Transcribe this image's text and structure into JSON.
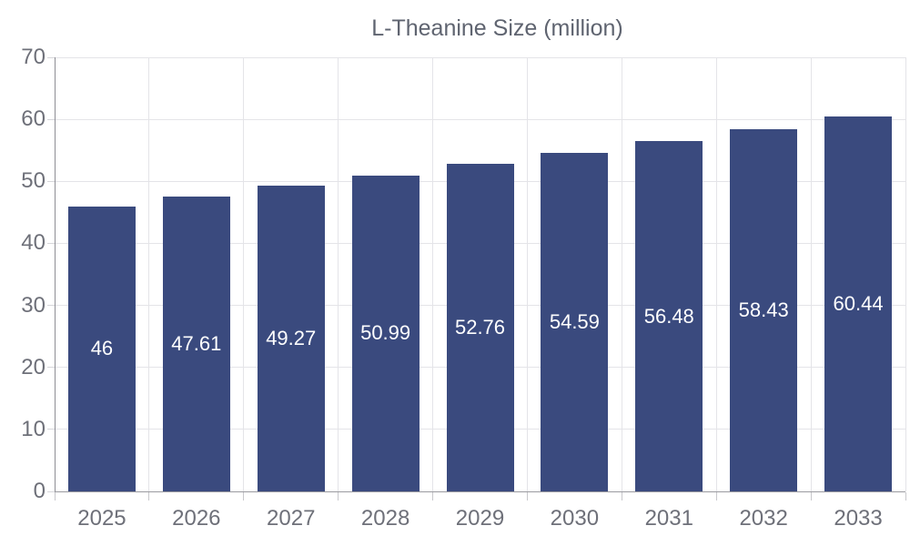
{
  "legend": {
    "label": "L-Theanine Size (million)"
  },
  "colors": {
    "bar": "#3a4a7e",
    "grid": "#e4e4e8",
    "axis": "#9a9aa0",
    "axis_label": "#6e7079",
    "legend_text": "#5f6470",
    "bar_label": "#ffffff",
    "background": "#ffffff"
  },
  "chart_data": {
    "type": "bar",
    "title": "",
    "xlabel": "",
    "ylabel": "",
    "categories": [
      "2025",
      "2026",
      "2027",
      "2028",
      "2029",
      "2030",
      "2031",
      "2032",
      "2033"
    ],
    "series": [
      {
        "name": "L-Theanine Size (million)",
        "values": [
          46,
          47.61,
          49.27,
          50.99,
          52.76,
          54.59,
          56.48,
          58.43,
          60.44
        ]
      }
    ],
    "data_labels": [
      "46",
      "47.61",
      "49.27",
      "50.99",
      "52.76",
      "54.59",
      "56.48",
      "58.43",
      "60.44"
    ],
    "ylim": [
      0,
      70
    ],
    "yticks": [
      0,
      10,
      20,
      30,
      40,
      50,
      60,
      70
    ],
    "grid": true,
    "legend_position": "top",
    "data_label_position": "inside-center"
  }
}
